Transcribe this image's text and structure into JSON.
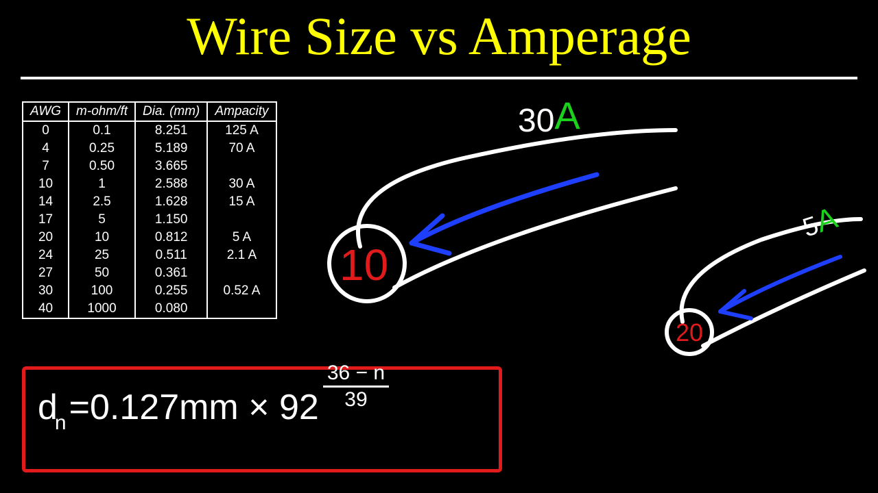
{
  "title": "Wire Size vs Amperage",
  "colors": {
    "background": "#000000",
    "title": "#ffff00",
    "white": "#ffffff",
    "red": "#e11b1b",
    "blue": "#1f3fff",
    "green": "#1bd11b"
  },
  "table": {
    "columns": [
      "AWG",
      "m-ohm/ft",
      "Dia. (mm)",
      "Ampacity"
    ],
    "rows": [
      [
        "0",
        "0.1",
        "8.251",
        "125 A"
      ],
      [
        "4",
        "0.25",
        "5.189",
        "70 A"
      ],
      [
        "7",
        "0.50",
        "3.665",
        ""
      ],
      [
        "10",
        "1",
        "2.588",
        "30 A"
      ],
      [
        "14",
        "2.5",
        "1.628",
        "15 A"
      ],
      [
        "17",
        "5",
        "1.150",
        ""
      ],
      [
        "20",
        "10",
        "0.812",
        "5 A"
      ],
      [
        "24",
        "25",
        "0.511",
        "2.1 A"
      ],
      [
        "27",
        "50",
        "0.361",
        ""
      ],
      [
        "30",
        "100",
        "0.255",
        "0.52 A"
      ],
      [
        "40",
        "1000",
        "0.080",
        ""
      ]
    ],
    "border_color": "#ffffff",
    "text_color": "#ffffff",
    "font_size": 19
  },
  "formula": {
    "lhs_var": "d",
    "lhs_sub": "n",
    "equals": " = ",
    "term1": "0.127mm × 92",
    "exp_num": "36 − n",
    "exp_den": "39",
    "box_color": "#e11b1b",
    "text_color": "#ffffff",
    "font_size": 52
  },
  "wire_big": {
    "gauge_label": "10",
    "gauge_color": "#e11b1b",
    "amp_number": "30",
    "amp_letter": "A",
    "amp_number_color": "#ffffff",
    "amp_letter_color": "#1bd11b",
    "arrow_color": "#1f3fff",
    "outline_color": "#ffffff"
  },
  "wire_small": {
    "gauge_label": "20",
    "gauge_color": "#e11b1b",
    "amp_number": "5",
    "amp_letter": "A",
    "amp_number_color": "#ffffff",
    "amp_letter_color": "#1bd11b",
    "arrow_color": "#1f3fff",
    "outline_color": "#ffffff"
  }
}
